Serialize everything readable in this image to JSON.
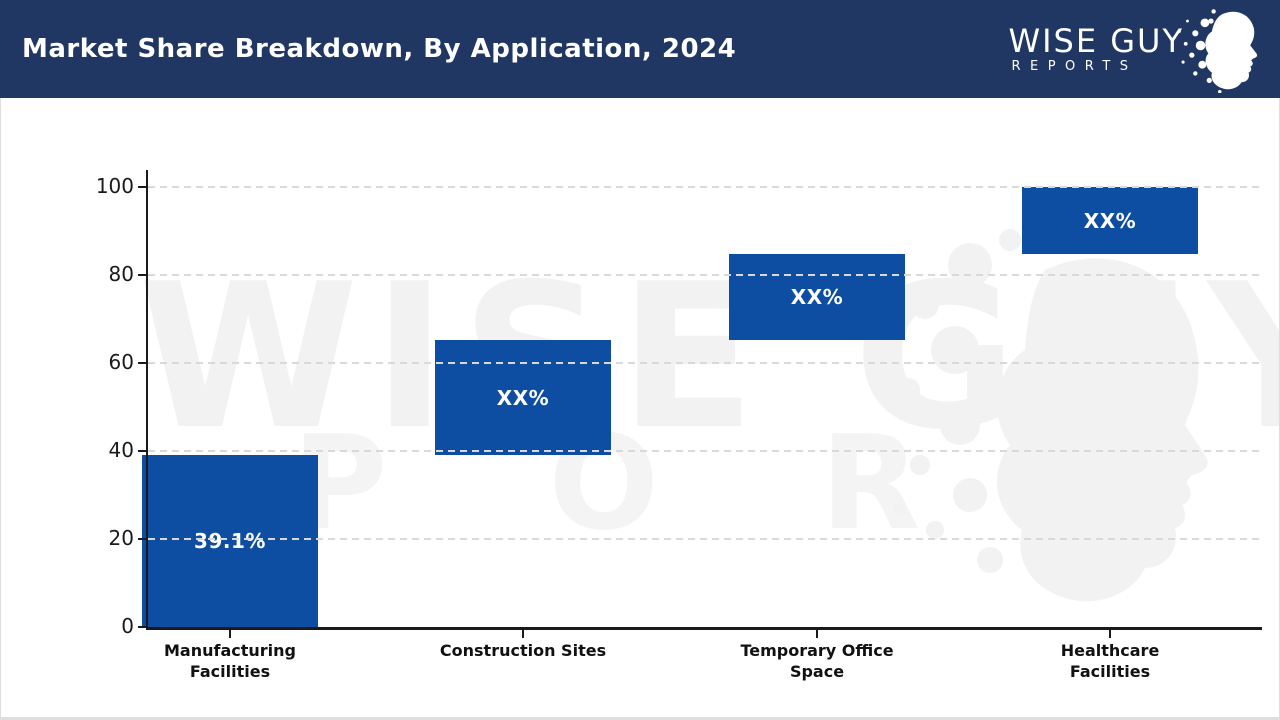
{
  "header": {
    "title": "Market Share Breakdown, By Application, 2024",
    "logo": {
      "name": "Wise Guy Reports",
      "line1": "WISE GUY",
      "line2": "REPORTS"
    }
  },
  "watermark": {
    "line1": "WISE GUY",
    "line2": "P O R T S"
  },
  "chart_data": {
    "type": "bar",
    "subtype": "floating-segment-waterfall",
    "title": "Market Share Breakdown, By Application, 2024",
    "categories": [
      "Manufacturing Facilities",
      "Construction Sites",
      "Temporary Office Space",
      "Healthcare Facilities"
    ],
    "segments": [
      {
        "category": "Manufacturing Facilities",
        "category_lines": [
          "Manufacturing",
          "Facilities"
        ],
        "start": 0,
        "end": 39.1,
        "label": "39.1%"
      },
      {
        "category": "Construction Sites",
        "category_lines": [
          "Construction Sites"
        ],
        "start": 39.1,
        "end": 65.2,
        "label": "XX%"
      },
      {
        "category": "Temporary Office Space",
        "category_lines": [
          "Temporary Office",
          "Space"
        ],
        "start": 65.2,
        "end": 84.7,
        "label": "XX%"
      },
      {
        "category": "Healthcare Facilities",
        "category_lines": [
          "Healthcare",
          "Facilities"
        ],
        "start": 84.7,
        "end": 100,
        "label": "XX%"
      }
    ],
    "xlabel": "",
    "ylabel": "",
    "ylim": [
      0,
      100
    ],
    "yticks": [
      0,
      20,
      40,
      60,
      80,
      100
    ],
    "grid": "horizontal dashed, drawn over bars",
    "legend": "none",
    "colors": {
      "bar": "#0d4da2",
      "bar_label": "#ffffff",
      "axis": "#1a1a1a",
      "gridline": "#d9d9d9",
      "tick_label": "#1a1a1a",
      "category_label": "#111111",
      "header_bg": "#203764",
      "header_text": "#ffffff",
      "watermark": "#f2f2f2"
    }
  }
}
